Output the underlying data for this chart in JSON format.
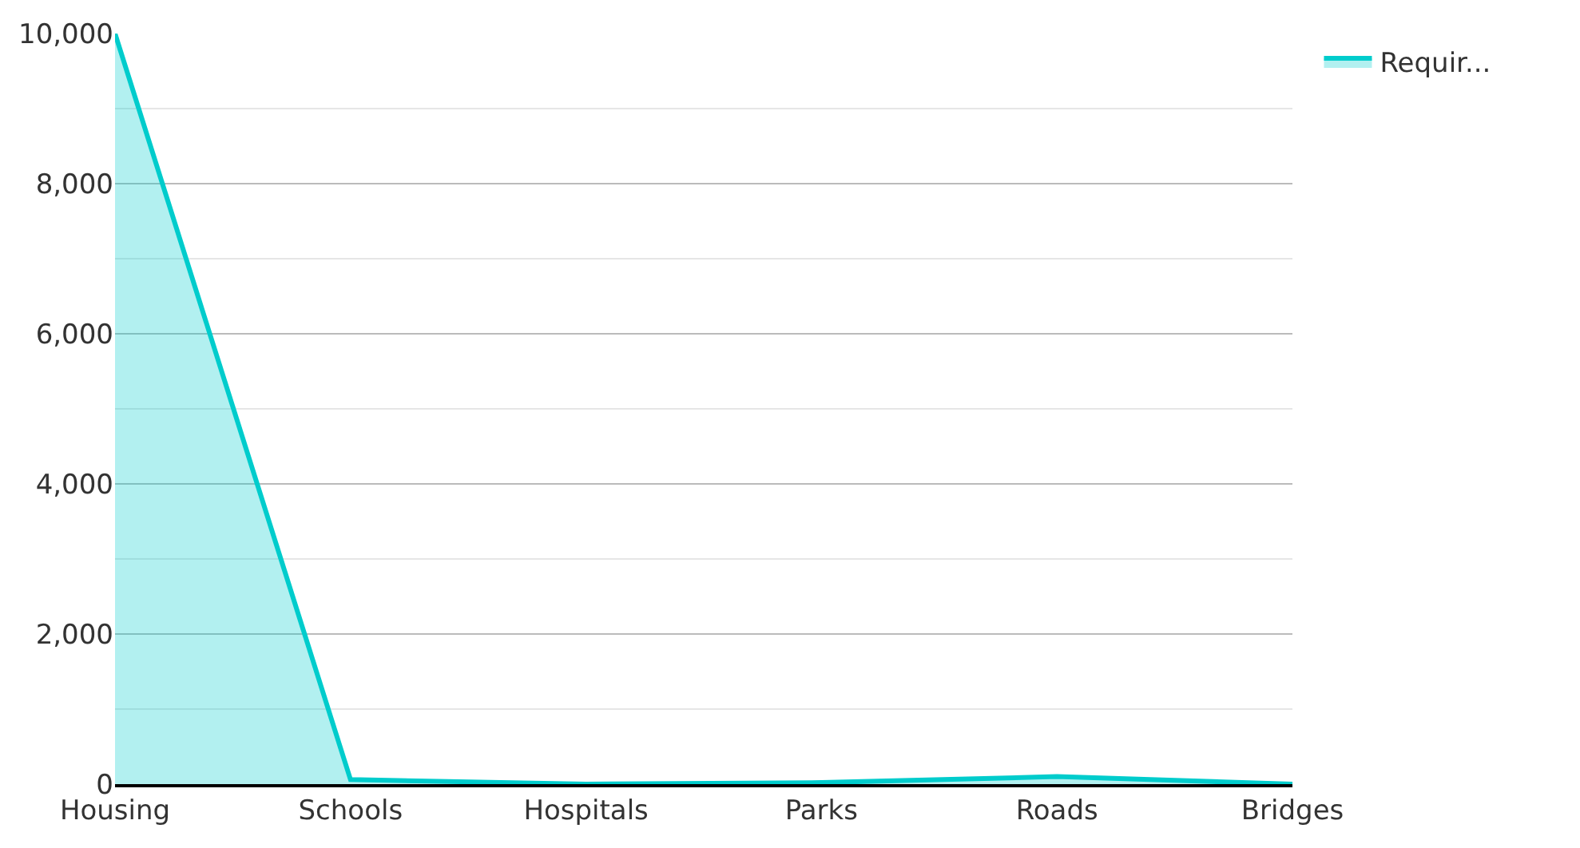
{
  "chart_data": {
    "type": "area",
    "categories": [
      "Housing",
      "Schools",
      "Hospitals",
      "Parks",
      "Roads",
      "Bridges"
    ],
    "series": [
      {
        "name": "Requir...",
        "color": "#00cccc",
        "values": [
          10000,
          60,
          0,
          20,
          100,
          0
        ]
      }
    ],
    "ylim": [
      0,
      10000
    ],
    "yticks": [
      0,
      {
        "value": 2000,
        "label": "2,000"
      },
      {
        "value": 4000,
        "label": "4,000"
      },
      {
        "value": 6000,
        "label": "6,000"
      },
      {
        "value": 8000,
        "label": "8,000"
      },
      {
        "value": 10000,
        "label": "10,000"
      }
    ],
    "grid": "y",
    "legend": "top right",
    "marker": "none"
  }
}
